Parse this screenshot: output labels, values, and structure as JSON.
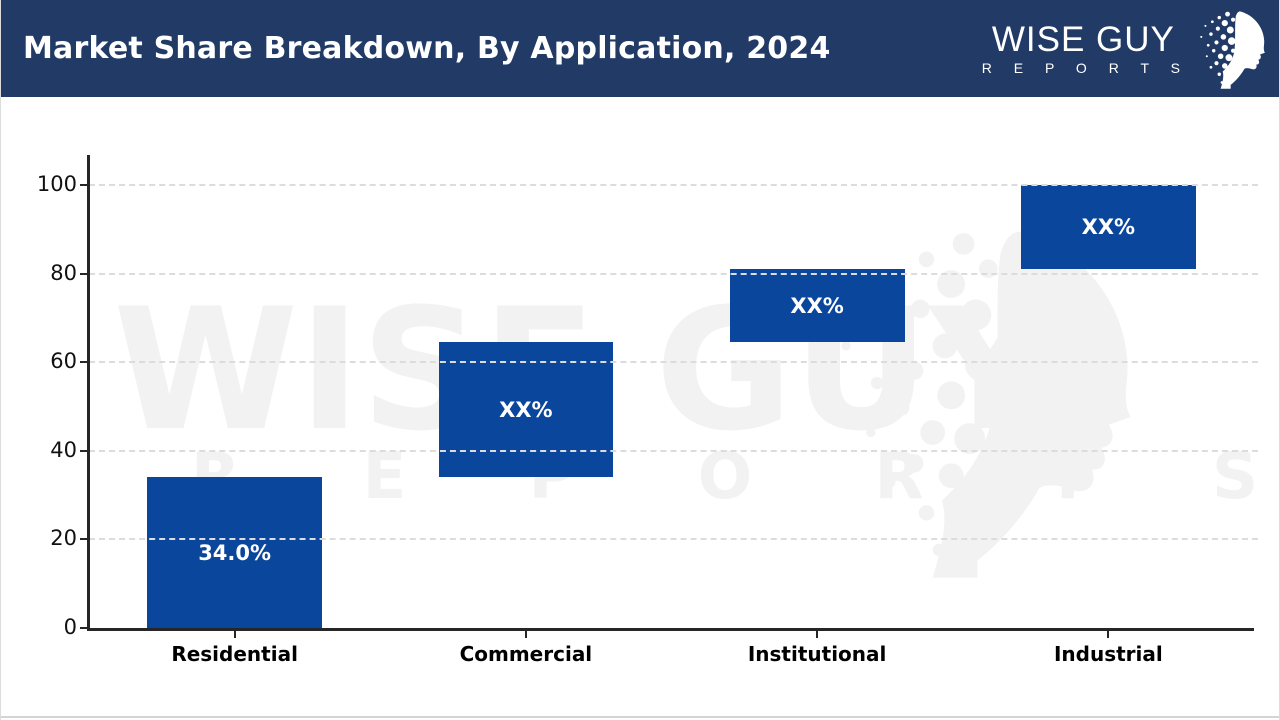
{
  "header": {
    "title": "Market Share Breakdown, By Application, 2024",
    "background_color": "#213a66",
    "logo": {
      "line1": "WISE GUY",
      "line2": "R E P O R T S"
    }
  },
  "watermark": {
    "line1": "WISE GUY",
    "line2": "R E P O R T S",
    "color": "#f2f2f2"
  },
  "chart_data": {
    "type": "bar",
    "variant": "waterfall",
    "categories": [
      "Residential",
      "Commercial",
      "Institutional",
      "Industrial"
    ],
    "segments": [
      {
        "category": "Residential",
        "from": 0,
        "to": 34,
        "label": "34.0%"
      },
      {
        "category": "Commercial",
        "from": 34,
        "to": 64.5,
        "label": "XX%"
      },
      {
        "category": "Institutional",
        "from": 64.5,
        "to": 81,
        "label": "XX%"
      },
      {
        "category": "Industrial",
        "from": 81,
        "to": 100,
        "label": "XX%"
      }
    ],
    "ylim": [
      0,
      100
    ],
    "yticks": [
      0,
      20,
      40,
      60,
      80,
      100
    ],
    "grid": "horizontal-dashed-on-top",
    "legend": "none",
    "bar_color": "#0a469b",
    "bar_label_color": "#ffffff",
    "axis_color": "#262626",
    "grid_color": "#dcdcdc"
  }
}
